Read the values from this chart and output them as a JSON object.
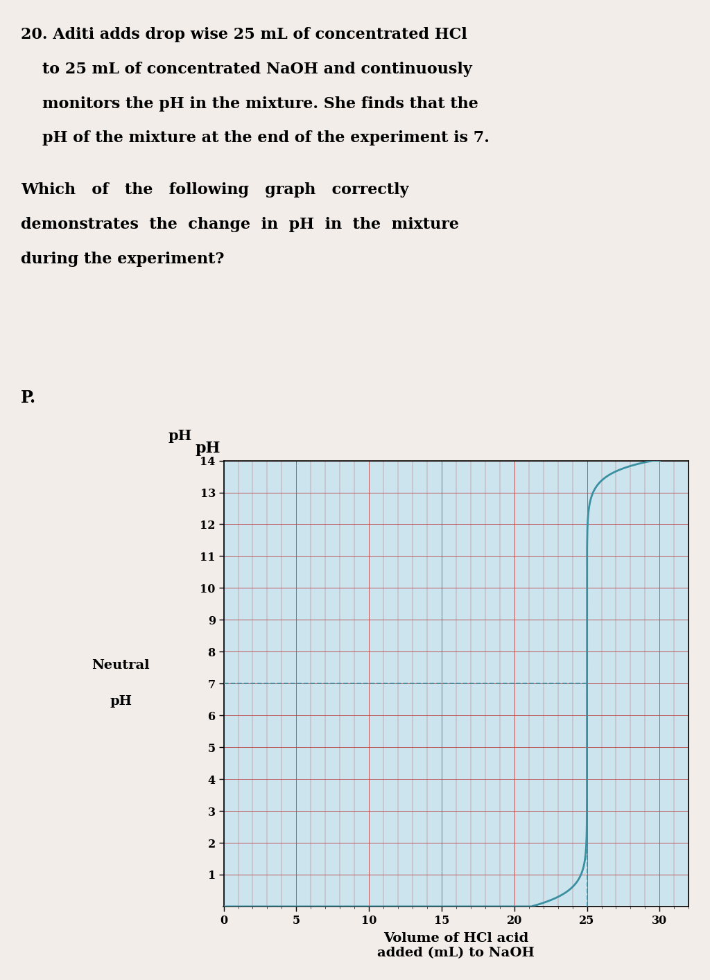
{
  "question_number": "20.",
  "question_lines": [
    "20. Aditi adds drop wise 25 mL of concentrated HCl",
    "    to 25 mL of concentrated NaOH and continuously",
    "    monitors the pH in the mixture. She finds that the",
    "    pH of the mixture at the end of the experiment is 7.",
    "Which   of   the   following   graph   correctly",
    "demonstrates  the  change  in  pH  in  the  mixture",
    "during the experiment?"
  ],
  "option_label": "P.",
  "ylabel": "pH",
  "xlabel_line1": "Volume of HCl acid",
  "xlabel_line2": "added (mL) to NaOH",
  "neutral_label_line1": "Neutral",
  "neutral_label_line2": "pH",
  "xlim": [
    0,
    32
  ],
  "ylim": [
    0,
    14
  ],
  "xticks": [
    0,
    5,
    10,
    15,
    20,
    25,
    30
  ],
  "yticks": [
    1,
    2,
    3,
    4,
    5,
    6,
    7,
    8,
    9,
    10,
    11,
    12,
    13,
    14
  ],
  "grid_color": "#b84040",
  "background_color": "#cce4ee",
  "curve_color": "#3a8fa0",
  "dashed_line_color": "#3a8fa0",
  "neutral_ph": 7,
  "equivalence_volume": 25,
  "page_bg": "#f2ede8",
  "chart_bg": "#c8e0ec"
}
